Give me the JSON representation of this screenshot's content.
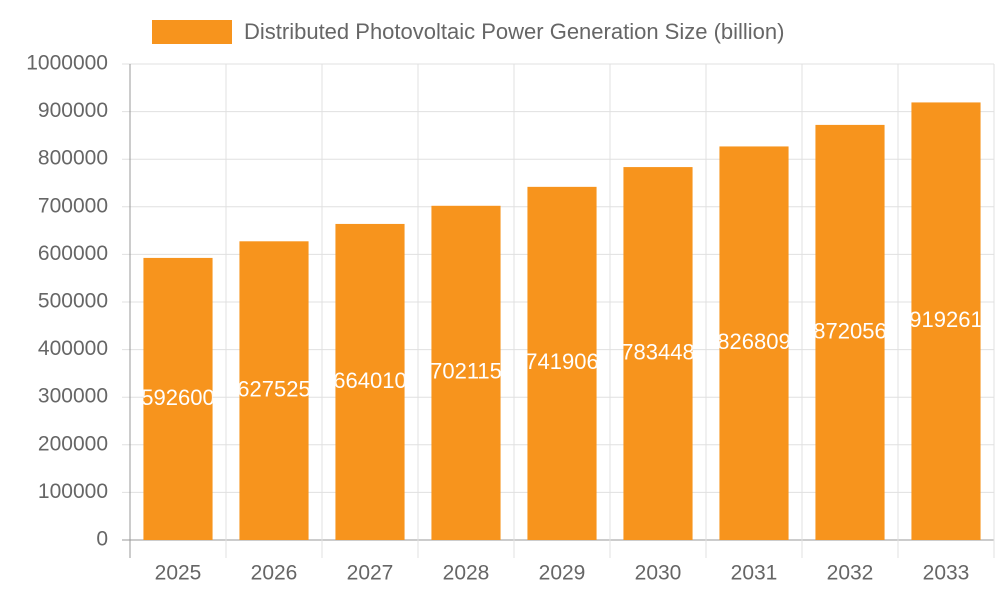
{
  "chart_data": {
    "type": "bar",
    "categories": [
      "2025",
      "2026",
      "2027",
      "2028",
      "2029",
      "2030",
      "2031",
      "2032",
      "2033"
    ],
    "series": [
      {
        "name": "Distributed Photovoltaic Power Generation Size (billion)",
        "color": "#f7941d",
        "values": [
          592600,
          627525,
          664010,
          702115,
          741906,
          783448,
          826809,
          872056,
          919261
        ]
      }
    ],
    "ylim": [
      0,
      1000000
    ],
    "yticks": [
      0,
      100000,
      200000,
      300000,
      400000,
      500000,
      600000,
      700000,
      800000,
      900000,
      1000000
    ],
    "grid": true,
    "legend": "top",
    "data_labels": true
  }
}
